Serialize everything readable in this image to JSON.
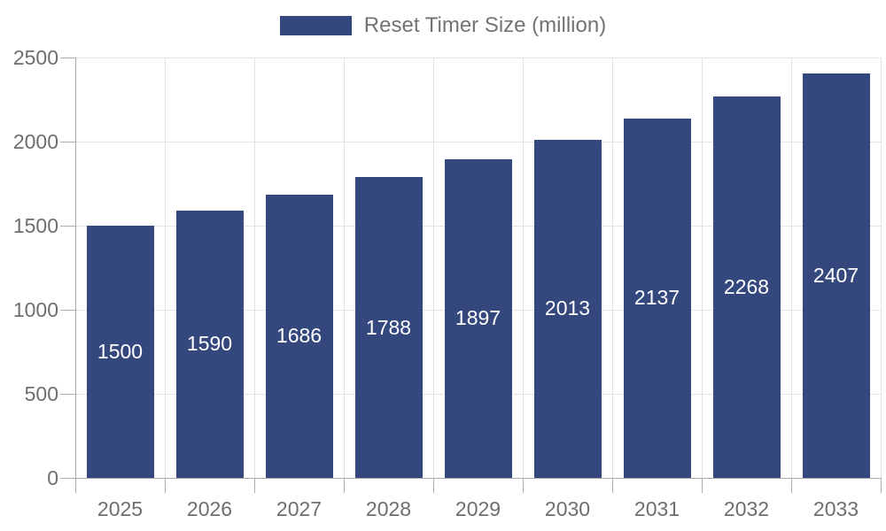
{
  "legend": {
    "label": "Reset Timer Size (million)",
    "swatch_color": "#35487E",
    "text_color": "#737373"
  },
  "colors": {
    "bar": "#35487E",
    "bar_label": "#FFFFFF",
    "grid": "#E2E2E8",
    "axis": "#A6A6A6",
    "tick": "#ADADAD",
    "tick_label": "#6E6E6E",
    "background": "#FFFFFF"
  },
  "chart_data": {
    "type": "bar",
    "title": "",
    "categories": [
      "2025",
      "2026",
      "2027",
      "2028",
      "2029",
      "2030",
      "2031",
      "2032",
      "2033"
    ],
    "series": [
      {
        "name": "Reset Timer Size (million)",
        "values": [
          1500,
          1590,
          1686,
          1788,
          1897,
          2013,
          2137,
          2268,
          2407
        ],
        "color": "#35487E"
      }
    ],
    "xlabel": "",
    "ylabel": "",
    "ylim": [
      0,
      2500
    ],
    "yticks": [
      0,
      500,
      1000,
      1500,
      2000,
      2500
    ],
    "ytick_labels": [
      "0",
      "500",
      "1000",
      "1500",
      "2000",
      "2500"
    ],
    "grid": true,
    "legend_position": "top-center",
    "data_labels": "inside-center"
  }
}
